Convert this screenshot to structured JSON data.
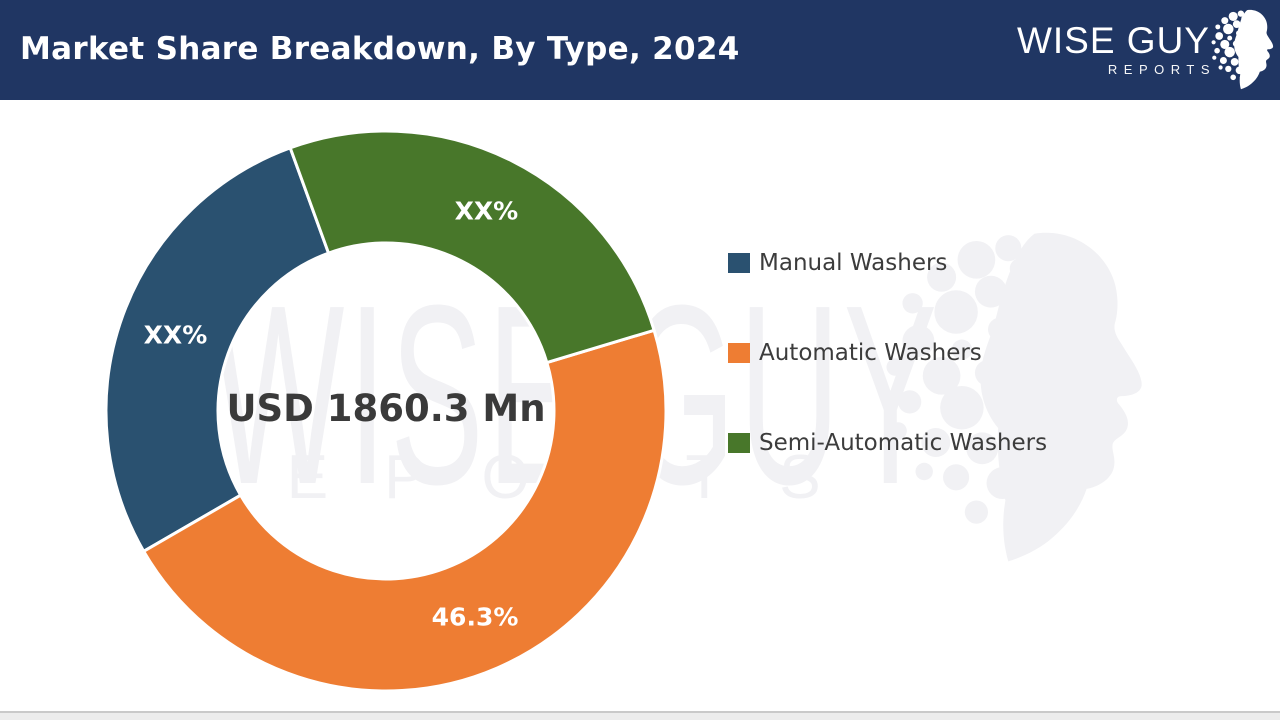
{
  "header": {
    "title": "Market Share Breakdown, By Type, 2024"
  },
  "brand": {
    "name": "WISE GUY",
    "sub": "REPORTS"
  },
  "watermark": {
    "line1": "WISE GUY",
    "line2": "REPORTS"
  },
  "chart_data": {
    "type": "donut",
    "center_label": "USD 1860.3 Mn",
    "start_angle_deg": 110,
    "direction": "counterclockwise",
    "inner_radius_ratio": 0.6,
    "legend_position": "right",
    "segments": [
      {
        "label": "Manual Washers",
        "value_pct": 27.8,
        "value_display": "XX%",
        "color": "#2a5170"
      },
      {
        "label": "Automatic Washers",
        "value_pct": 46.3,
        "value_display": "46.3%",
        "color": "#ee7d33"
      },
      {
        "label": "Semi-Automatic Washers",
        "value_pct": 25.9,
        "value_display": "XX%",
        "color": "#48772a"
      }
    ]
  },
  "colors": {
    "header_bg": "#203663",
    "center_text": "#3a3a3a",
    "legend_text": "#3c3c3c",
    "watermark": "#f1f1f4",
    "footer_line": "#c9c9c9",
    "footer_strip": "#ececec"
  }
}
